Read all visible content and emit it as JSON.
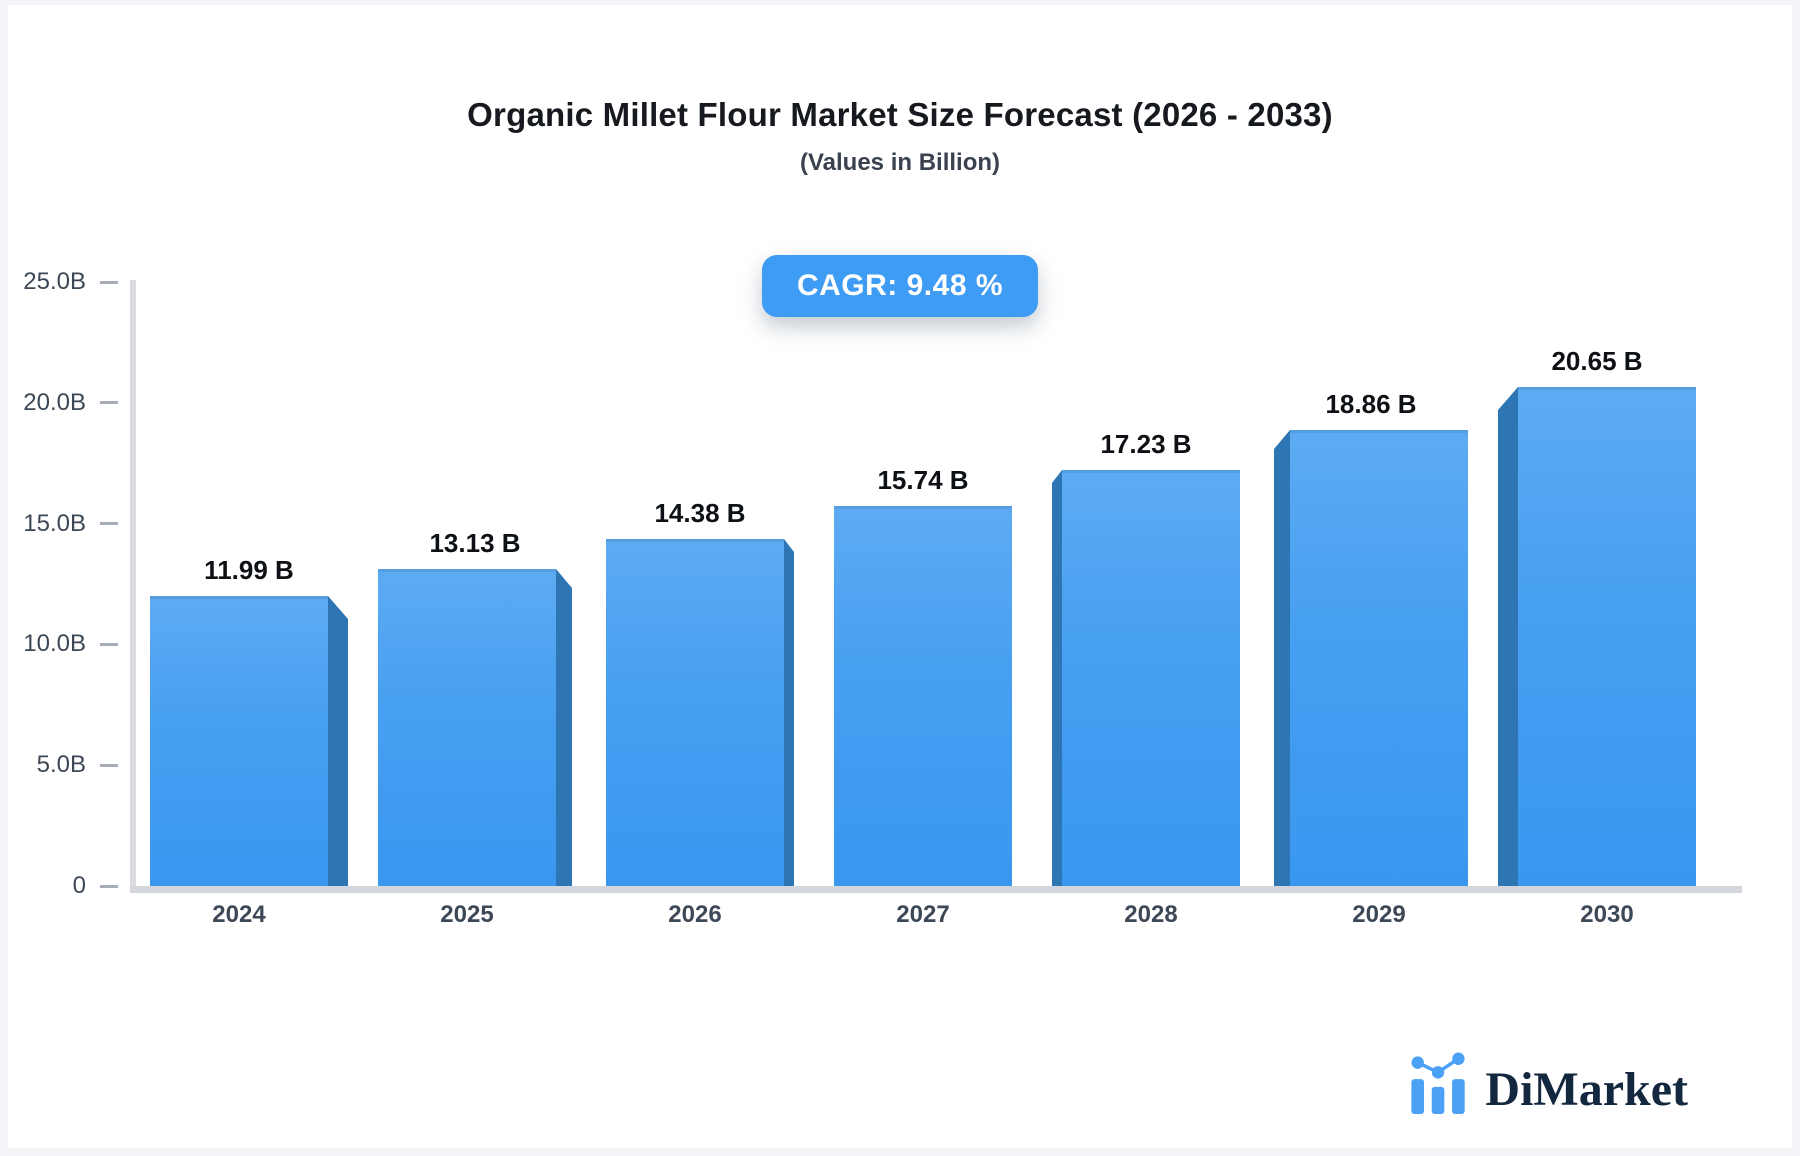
{
  "header": {
    "title": "Organic Millet Flour Market Size Forecast (2026 - 2033)",
    "subtitle": "(Values in Billion)"
  },
  "badge": {
    "label": "CAGR: 9.48 %"
  },
  "chart_data": {
    "type": "bar",
    "title": "Organic Millet Flour Market Size Forecast (2026 - 2033)",
    "subtitle": "(Values in Billion)",
    "cagr_percent": 9.48,
    "categories": [
      "2024",
      "2025",
      "2026",
      "2027",
      "2028",
      "2029",
      "2030"
    ],
    "values": [
      11.99,
      13.13,
      14.38,
      15.74,
      17.23,
      18.86,
      20.65
    ],
    "value_labels": [
      "11.99 B",
      "13.13 B",
      "14.38 B",
      "15.74 B",
      "17.23 B",
      "18.86 B",
      "20.65 B"
    ],
    "ylim": [
      0,
      25
    ],
    "yticks": [
      {
        "label": "25.0B",
        "value": 25
      },
      {
        "label": "20.0B",
        "value": 20
      },
      {
        "label": "15.0B",
        "value": 15
      },
      {
        "label": "10.0B",
        "value": 10
      },
      {
        "label": "5.0B",
        "value": 5
      },
      {
        "label": "0",
        "value": 0
      }
    ],
    "grid": false,
    "legend": false,
    "bar_style": "3d-perspective-center",
    "bar_colors": {
      "face_top": "#5dabf2",
      "face_bottom": "#3a97f0",
      "side": "#2e76b3"
    }
  },
  "branding": {
    "name": "DiMarket",
    "icon": "mini-bar-chart-logo-icon",
    "navy": "#13273f",
    "blue": "#4aa1f6"
  },
  "colors": {
    "badge_bg": "#3f9cf4",
    "badge_text": "#ffffff",
    "axis": "#dadce1",
    "baseline": "#d3d6da",
    "tick": "#a7adb6",
    "axis_label_text": "#3d4857",
    "title_text": "#16191e"
  }
}
